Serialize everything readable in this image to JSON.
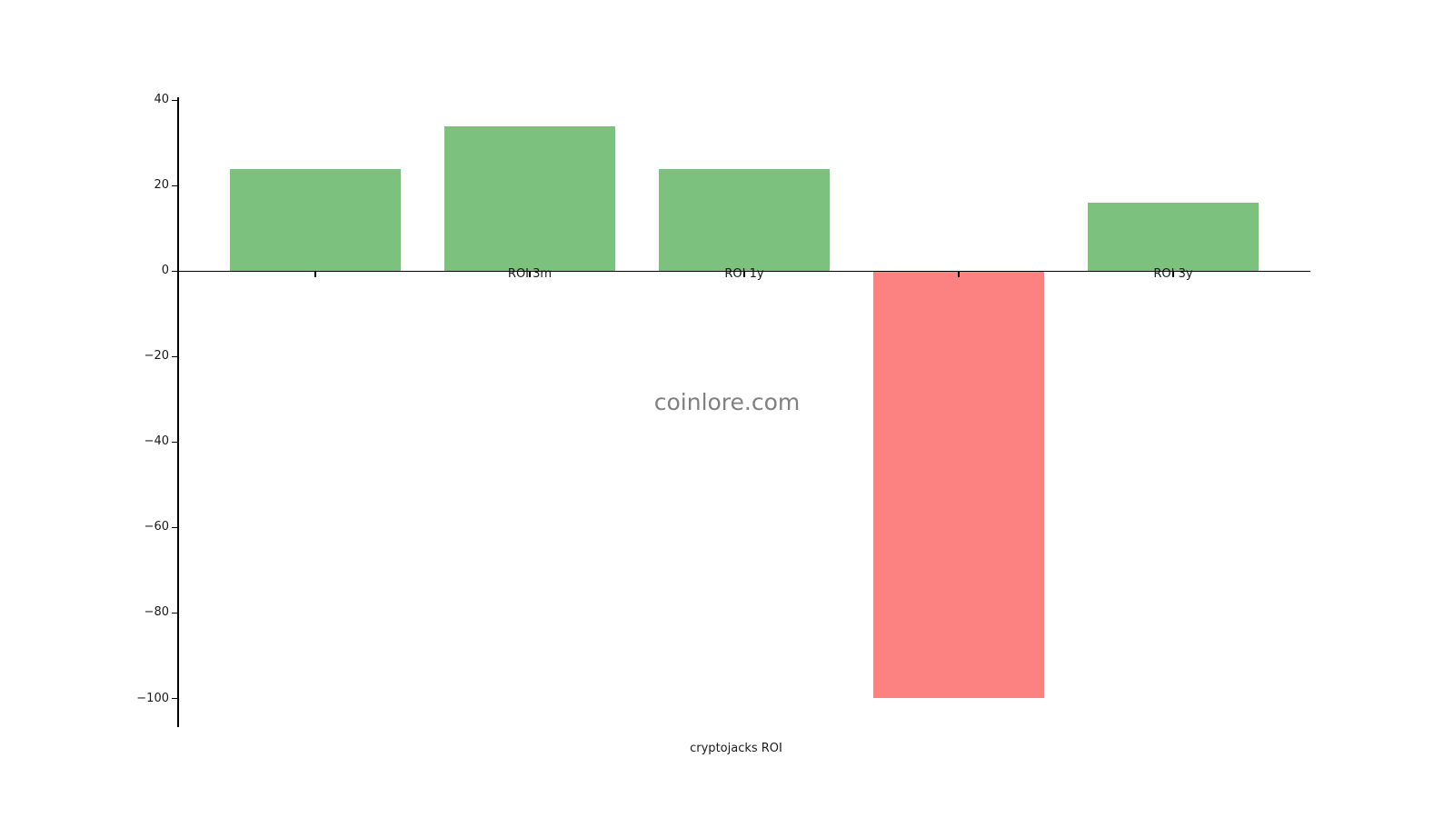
{
  "watermark": "coinlore.com",
  "colors": {
    "positive_bar": "#7cc17e",
    "negative_bar": "#fc8181",
    "axis": "#000000",
    "tick_text": "#1a1a1a",
    "watermark_text": "#808080",
    "background": "#ffffff"
  },
  "chart_data": {
    "type": "bar",
    "title": "cryptojacks ROI",
    "categories": [
      "",
      "ROI 3m",
      "ROI 1y",
      "",
      "ROI 3y"
    ],
    "values": [
      24,
      34,
      24,
      -100,
      16
    ],
    "bar_colors": [
      "#7cc17e",
      "#7cc17e",
      "#7cc17e",
      "#fc8181",
      "#7cc17e"
    ],
    "yticks": [
      40,
      20,
      0,
      -20,
      -40,
      -60,
      -80,
      -100
    ],
    "ytick_labels": [
      "40",
      "20",
      "0",
      "−20",
      "−40",
      "−60",
      "−80",
      "−100"
    ],
    "xlim": [
      -0.64,
      4.64
    ],
    "ylim": [
      -106.7,
      40.7
    ],
    "bar_width": 0.8,
    "grid": false,
    "legend": null,
    "xlabel": "",
    "ylabel": "",
    "annotations": [
      "coinlore.com"
    ]
  }
}
